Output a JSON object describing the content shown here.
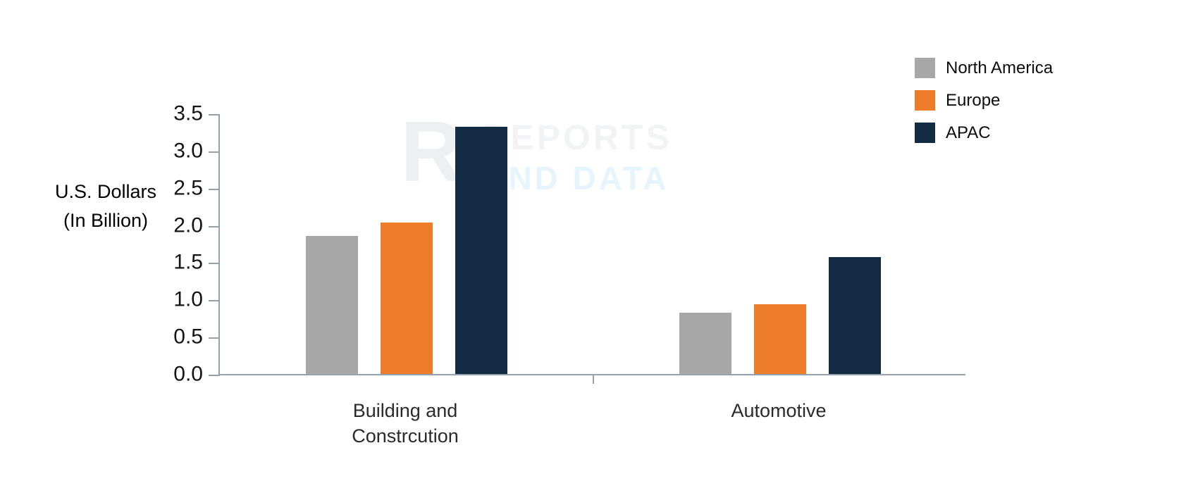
{
  "chart_data": {
    "type": "bar",
    "title": "",
    "ylabel": "U.S. Dollars\n(In Billion)",
    "xlabel": "",
    "ylim": [
      0,
      3.5
    ],
    "ytick_step": 0.5,
    "yticks": [
      "0.0",
      "0.5",
      "1.0",
      "1.5",
      "2.0",
      "2.5",
      "3.0",
      "3.5"
    ],
    "grid": false,
    "legend_position": "top-right",
    "categories": [
      "Building and\nConstrcution",
      "Automotive"
    ],
    "series": [
      {
        "name": "North America",
        "color": "#a7a7a7",
        "values": [
          1.85,
          0.82
        ]
      },
      {
        "name": "Europe",
        "color": "#ee7d2b",
        "values": [
          2.03,
          0.94
        ]
      },
      {
        "name": "APAC",
        "color": "#132c44",
        "values": [
          3.32,
          1.57
        ]
      }
    ]
  },
  "watermark": {
    "logo_letter": "R",
    "line1": "REPORTS",
    "line2": "AND DATA"
  }
}
